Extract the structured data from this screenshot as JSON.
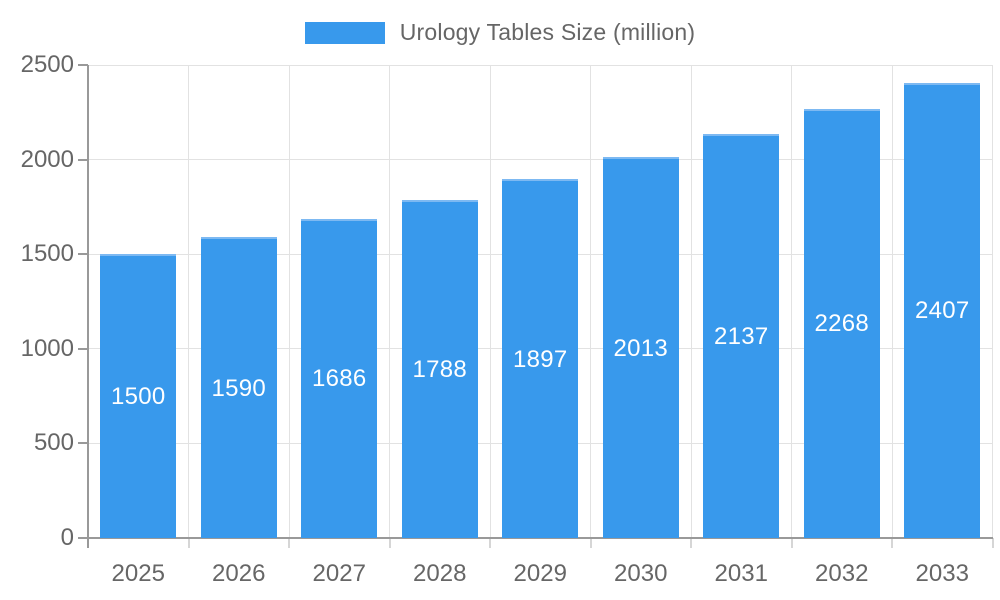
{
  "chart_data": {
    "type": "bar",
    "title": "Urology Tables Size (million)",
    "categories": [
      "2025",
      "2026",
      "2027",
      "2028",
      "2029",
      "2030",
      "2031",
      "2032",
      "2033"
    ],
    "values": [
      1500,
      1590,
      1686,
      1788,
      1897,
      2013,
      2137,
      2268,
      2407
    ],
    "xlabel": "",
    "ylabel": "",
    "ylim": [
      0,
      2500
    ],
    "yticks": [
      0,
      500,
      1000,
      1500,
      2000,
      2500
    ],
    "grid": true,
    "legend_position": "top-center",
    "value_labels": "inside-center",
    "colors": {
      "bar": "#3899ec",
      "bar_top_edge": "#7db9f2",
      "gridline": "#e2e2e2",
      "axis": "#999999",
      "minor_tick": "#d6d6d6",
      "text": "#666666",
      "value_text": "#ffffff",
      "background": "#ffffff"
    }
  }
}
